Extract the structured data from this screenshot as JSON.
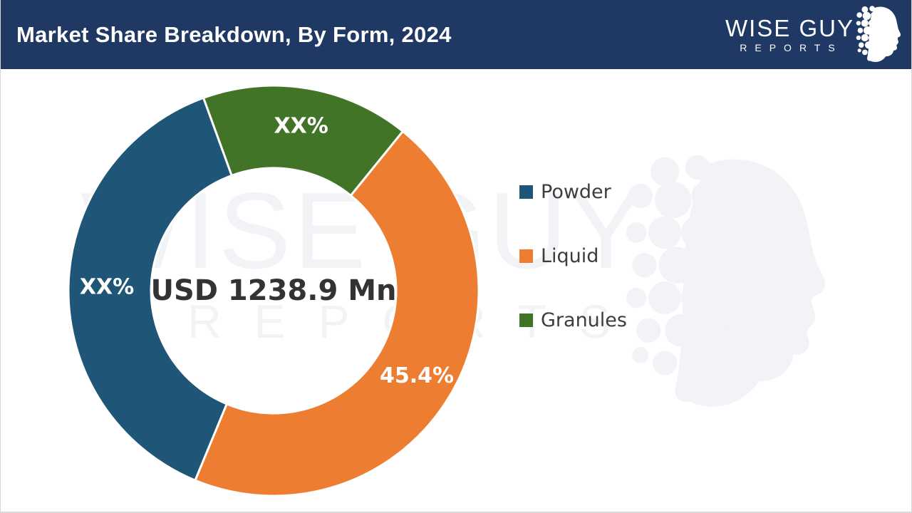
{
  "header": {
    "title": "Market Share Breakdown, By Form, 2024",
    "logo": {
      "name": "WISE GUY",
      "tagline": "REPORTS"
    }
  },
  "watermark": {
    "line1": "WISE GUY",
    "line2": "REPORTS"
  },
  "chart_data": {
    "type": "donut",
    "title": "Market Share Breakdown, By Form, 2024",
    "center_label": "USD 1238.9 Mn",
    "start_angle_deg": -20,
    "legend_position": "right",
    "segments": [
      {
        "name": "Granules",
        "value_pct": 16.4,
        "label": "XX%",
        "color": "#427428"
      },
      {
        "name": "Liquid",
        "value_pct": 45.4,
        "label": "45.4%",
        "color": "#ED7D31"
      },
      {
        "name": "Powder",
        "value_pct": 38.2,
        "label": "XX%",
        "color": "#1F5577"
      }
    ],
    "legend": [
      {
        "name": "Powder",
        "color": "#1F5577"
      },
      {
        "name": "Liquid",
        "color": "#ED7D31"
      },
      {
        "name": "Granules",
        "color": "#427428"
      }
    ]
  },
  "colors": {
    "header_bg": "#1F3864",
    "segment_label": "#FFFFFF",
    "center_text": "#333333",
    "legend_text": "#3D3D3D",
    "watermark": "#F2F3F6",
    "border": "#D9D9D9"
  }
}
